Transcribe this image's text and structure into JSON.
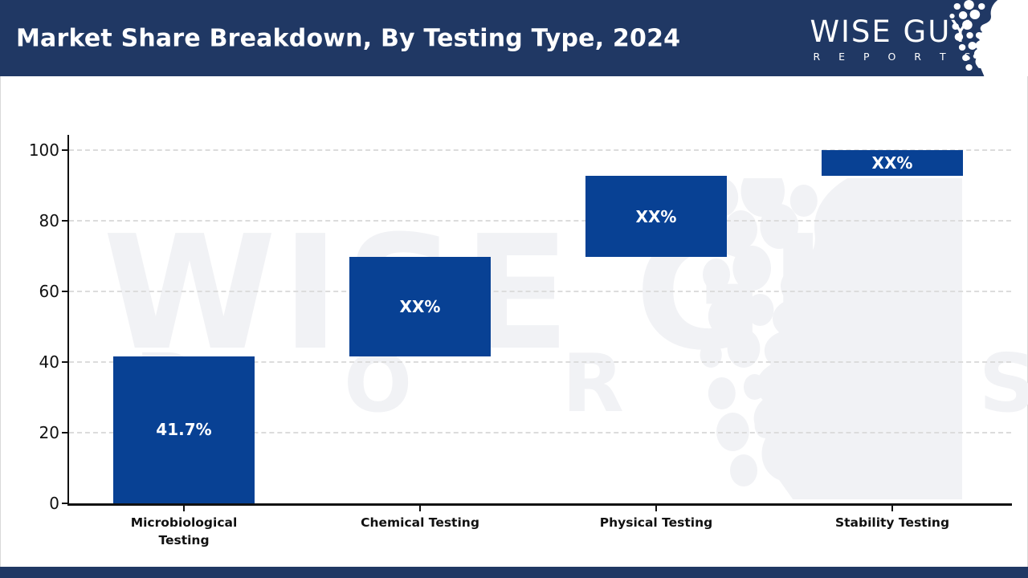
{
  "header": {
    "title": "Market Share Breakdown, By Testing Type, 2024",
    "bg_color": "#203864",
    "logo": {
      "wordmark": "WISE GUY",
      "subtext": "R E P O R T S"
    }
  },
  "watermark": {
    "word1": "WISE GU",
    "word2": "P O R T S"
  },
  "chart_data": {
    "type": "bar",
    "subtype": "waterfall",
    "title": "Market Share Breakdown, By Testing Type, 2024",
    "categories": [
      "Microbiological Testing",
      "Chemical Testing",
      "Physical Testing",
      "Stability Testing"
    ],
    "segments": [
      {
        "category": "Microbiological Testing",
        "start": 0,
        "end": 41.7,
        "label": "41.7%"
      },
      {
        "category": "Chemical Testing",
        "start": 41.7,
        "end": 69.7,
        "label": "XX%"
      },
      {
        "category": "Physical Testing",
        "start": 69.7,
        "end": 92.7,
        "label": "XX%"
      },
      {
        "category": "Stability Testing",
        "start": 92.7,
        "end": 100,
        "label": "XX%"
      }
    ],
    "ylim": [
      0,
      100
    ],
    "yticks": [
      0,
      20,
      40,
      60,
      80,
      100
    ],
    "grid": "horizontal-dashed",
    "legend": "none",
    "bar_color": "#084194",
    "bar_label_color": "#ffffff",
    "axis_color": "#111111"
  },
  "footer": {
    "bg_color": "#203864"
  }
}
